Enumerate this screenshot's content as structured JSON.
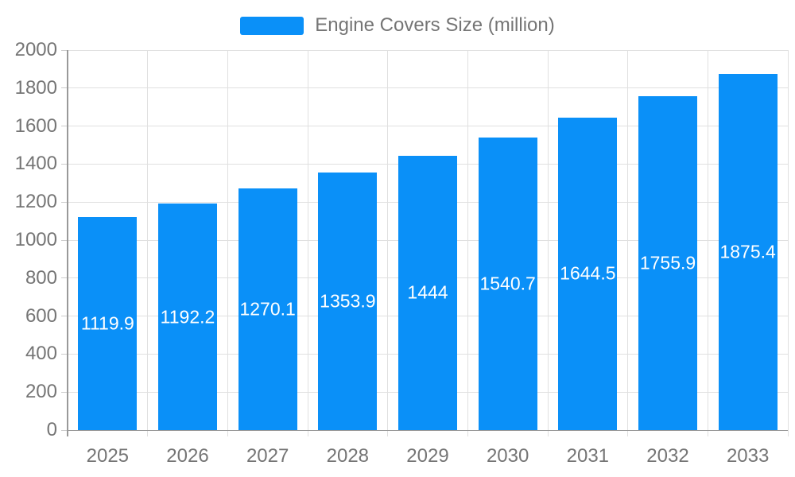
{
  "legend": {
    "label": "Engine Covers Size (million)"
  },
  "colors": {
    "bar": "#0A90F8",
    "axis_text": "#757575",
    "grid": "#E0E0E0",
    "tick": "#CCCCCC",
    "axis_line": "#999999",
    "bar_label": "#FFFFFF",
    "legend_text": "#757575",
    "background": "#FFFFFF"
  },
  "chart_data": {
    "type": "bar",
    "title": "Engine Covers Size (million)",
    "categories": [
      "2025",
      "2026",
      "2027",
      "2028",
      "2029",
      "2030",
      "2031",
      "2032",
      "2033"
    ],
    "values": [
      1119.9,
      1192.2,
      1270.1,
      1353.9,
      1444,
      1540.7,
      1644.5,
      1755.9,
      1875.4
    ],
    "value_labels": [
      "1119.9",
      "1192.2",
      "1270.1",
      "1353.9",
      "1444",
      "1540.7",
      "1644.5",
      "1755.9",
      "1875.4"
    ],
    "series_name": "Engine Covers Size (million)",
    "xlabel": "",
    "ylabel": "",
    "ylim": [
      0,
      2000
    ],
    "yticks": [
      0,
      200,
      400,
      600,
      800,
      1000,
      1200,
      1400,
      1600,
      1800,
      2000
    ],
    "grid": true,
    "legend_position": "top",
    "value_label_position": "inside-center"
  }
}
